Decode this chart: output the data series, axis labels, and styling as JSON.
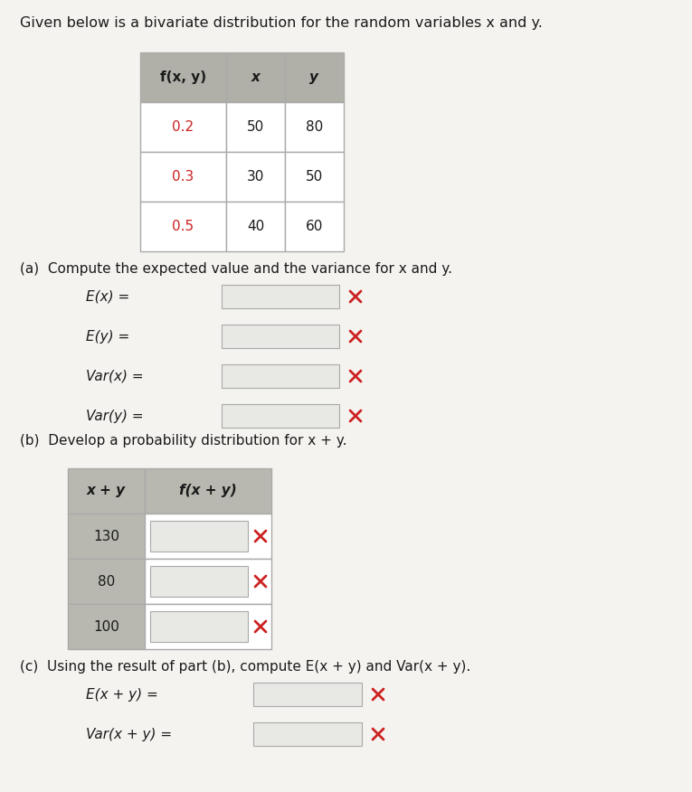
{
  "title": "Given below is a bivariate distribution for the random variables x and y.",
  "bg_color": "#f5f3f0",
  "table1": {
    "headers": [
      "f(x, y)",
      "x",
      "y"
    ],
    "rows": [
      [
        "0.2",
        "50",
        "80"
      ],
      [
        "0.3",
        "30",
        "50"
      ],
      [
        "0.5",
        "40",
        "60"
      ]
    ],
    "header_bg": "#b0b0a8",
    "header_fg": "#1a1a1a",
    "cell_bg": "#ffffff",
    "border_color": "#aaaaaa"
  },
  "part_a": {
    "label": "(a)  Compute the expected value and the variance for x and y.",
    "rows": [
      "E(x) =",
      "E(y) =",
      "Var(x) =",
      "Var(y) ="
    ]
  },
  "part_b": {
    "label": "(b)  Develop a probability distribution for x + y.",
    "headers": [
      "x + y",
      "f(x + y)"
    ],
    "rows": [
      [
        "130",
        ""
      ],
      [
        "80",
        ""
      ],
      [
        "100",
        ""
      ]
    ],
    "header_bg": "#b8b8b0",
    "header_fg": "#1a1a1a",
    "cell_bg": "#ffffff",
    "input_bg": "#e8e8e4"
  },
  "part_c": {
    "label": "(c)  Using the result of part (b), compute E(x + y) and Var(x + y).",
    "rows": [
      "E(x + y) =",
      "Var(x + y) ="
    ]
  },
  "x_mark_color": "#cc2222",
  "input_box_color": "#e8e8e4",
  "text_color": "#1a1a1a",
  "fxy_color": "#cc2222"
}
